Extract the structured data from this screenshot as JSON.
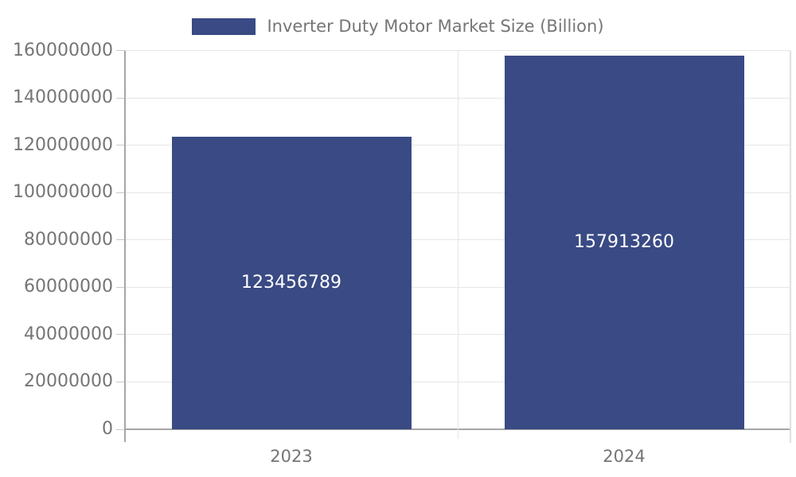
{
  "chart_data": {
    "type": "bar",
    "title": "",
    "legend": {
      "label": "Inverter Duty Motor Market Size (Billion)",
      "position": "top"
    },
    "categories": [
      "2023",
      "2024"
    ],
    "series": [
      {
        "name": "Inverter Duty Motor Market Size (Billion)",
        "values": [
          123456789,
          157913260
        ]
      }
    ],
    "xlabel": "",
    "ylabel": "",
    "ylim": [
      0,
      160000000
    ],
    "yticks": [
      0,
      20000000,
      40000000,
      60000000,
      80000000,
      100000000,
      120000000,
      140000000,
      160000000
    ],
    "grid": true,
    "value_labels_shown": true,
    "colors": {
      "bar": "#394a84",
      "grid": "#e6e6e6",
      "axis": "#a6a6a6",
      "tick": "#c9c9c9",
      "border": "#e0e0e0",
      "axis_label": "#757575",
      "value_label": "#ffffff",
      "background": "#ffffff"
    }
  }
}
